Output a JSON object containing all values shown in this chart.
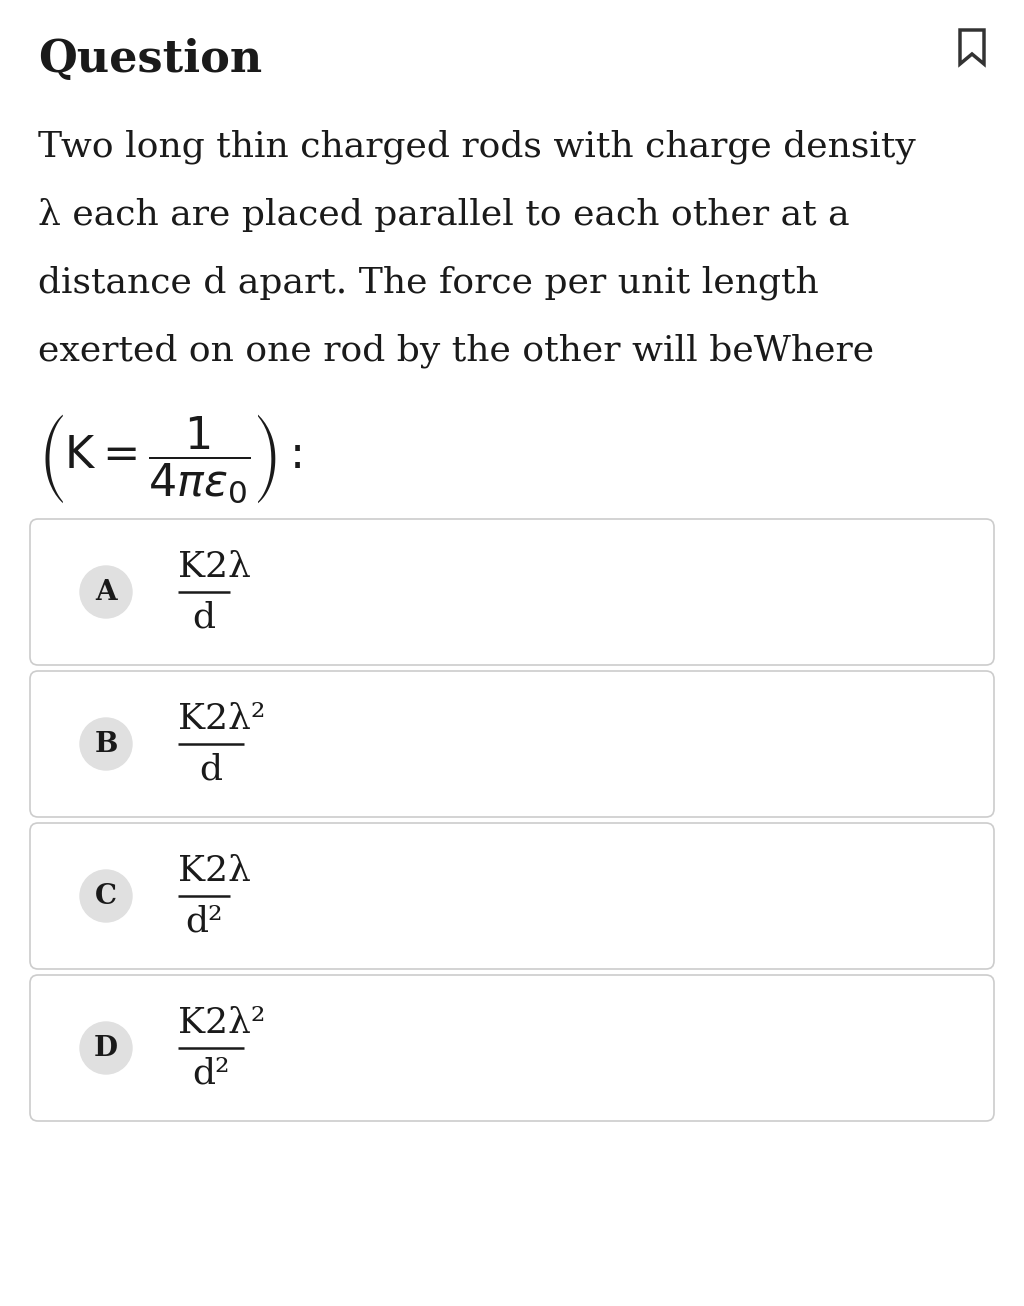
{
  "title": "Question",
  "background_color": "#ffffff",
  "text_color": "#1a1a1a",
  "question_text_lines": [
    "Two long thin charged rods with charge density",
    "λ each are placed parallel to each other at a",
    "distance d apart. The force per unit length",
    "exerted on one rod by the other will beWhere"
  ],
  "options": [
    {
      "label": "A",
      "numerator": "K2λ",
      "denominator": "d"
    },
    {
      "label": "B",
      "numerator": "K2λ²",
      "denominator": "d"
    },
    {
      "label": "C",
      "numerator": "K2λ",
      "denominator": "d²"
    },
    {
      "label": "D",
      "numerator": "K2λ²",
      "denominator": "d²"
    }
  ],
  "option_box_border": "#cccccc",
  "option_label_bg": "#e0e0e0",
  "title_fontsize": 32,
  "question_fontsize": 26,
  "formula_fontsize": 26,
  "option_fontsize": 26,
  "option_label_fontsize": 20,
  "fig_width": 10.24,
  "fig_height": 13.06,
  "dpi": 100
}
